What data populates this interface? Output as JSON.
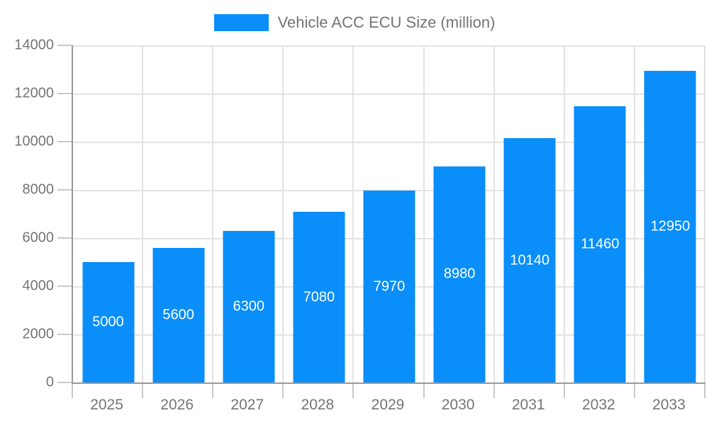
{
  "legend": {
    "label": "Vehicle ACC ECU Size (million)"
  },
  "chart_data": {
    "type": "bar",
    "title": "",
    "xlabel": "",
    "ylabel": "",
    "categories": [
      "2025",
      "2026",
      "2027",
      "2028",
      "2029",
      "2030",
      "2031",
      "2032",
      "2033"
    ],
    "values": [
      5000,
      5600,
      6300,
      7080,
      7970,
      8980,
      10140,
      11460,
      12950
    ],
    "series_name": "Vehicle ACC ECU Size (million)",
    "ylim": [
      0,
      14000
    ],
    "ytick_step": 2000,
    "ytick_labels": [
      "0",
      "2000",
      "4000",
      "6000",
      "8000",
      "10000",
      "12000",
      "14000"
    ],
    "grid": true,
    "legend_position": "top",
    "bar_color": "#0a8ef9",
    "bar_label_color": "#ffffff",
    "axis_color": "#9a9a9a",
    "grid_color": "#e3e3e3",
    "tick_color": "#c9c9c9",
    "text_color": "#757575"
  }
}
